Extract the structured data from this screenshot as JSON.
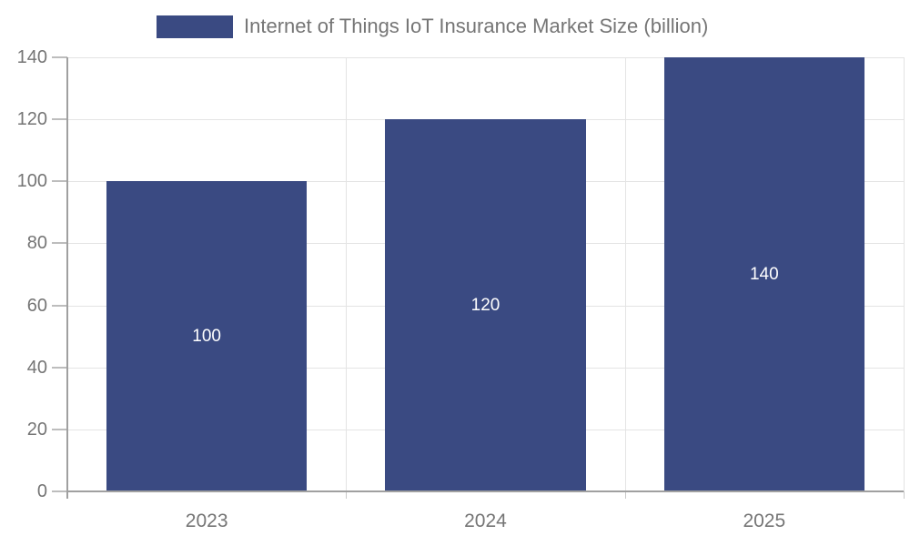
{
  "chart_data": {
    "type": "bar",
    "title": "Internet of Things IoT Insurance Market Size (billion)",
    "categories": [
      "2023",
      "2024",
      "2025"
    ],
    "values": [
      100,
      120,
      140
    ],
    "bar_labels": [
      "100",
      "120",
      "140"
    ],
    "xlabel": "",
    "ylabel": "",
    "ylim": [
      0,
      140
    ],
    "yticks": [
      0,
      20,
      40,
      60,
      80,
      100,
      120,
      140
    ],
    "grid": true,
    "legend_position": "top",
    "legend_entries": [
      "Internet of Things IoT Insurance Market Size (billion)"
    ],
    "colors": {
      "bar": "#3A4A82",
      "grid": "#E4E4E4",
      "axis": "#A0A0A0",
      "tick": "#BDBDBD",
      "axis_label": "#757575",
      "legend_text": "#757575",
      "value_label": "#FFFFFF",
      "background": "#FFFFFF"
    }
  }
}
